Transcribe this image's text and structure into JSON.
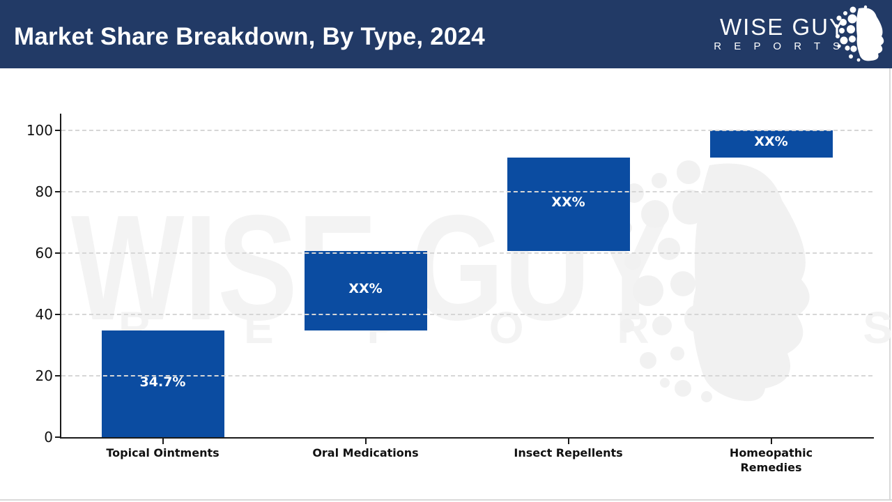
{
  "header": {
    "title": "Market Share Breakdown, By Type, 2024",
    "bg_color": "#223a66",
    "logo": {
      "line1": "WISE GUY",
      "line2": "R E P O R T S",
      "icon": "dotted-head-profile"
    }
  },
  "watermark": {
    "line1": "WISE GUY",
    "line2": "R E P O R T S",
    "icon": "dotted-head-profile",
    "color": "#f3f3f3"
  },
  "chart_data": {
    "type": "bar",
    "subtype": "waterfall-stacked-breakdown",
    "title": "Market Share Breakdown, By Type, 2024",
    "categories": [
      "Topical Ointments",
      "Oral Medications",
      "Insect Repellents",
      "Homeopathic\nRemedies"
    ],
    "segments": [
      {
        "category": "Topical Ointments",
        "start": 0,
        "end": 34.7,
        "label": "34.7%"
      },
      {
        "category": "Oral Medications",
        "start": 34.7,
        "end": 60.7,
        "label": "XX%"
      },
      {
        "category": "Insect Repellents",
        "start": 60.7,
        "end": 91.2,
        "label": "XX%"
      },
      {
        "category": "Homeopathic Remedies",
        "start": 91.2,
        "end": 100,
        "label": "XX%"
      }
    ],
    "xlabel": "",
    "ylabel": "",
    "ylim": [
      0,
      105
    ],
    "yticks": [
      0,
      20,
      40,
      60,
      80,
      100
    ],
    "grid": "horizontal-dashed-over-bars",
    "legend": "none",
    "bar_color": "#0b4ca1",
    "bar_label_color": "#ffffff",
    "axis_color": "#1a1a1a",
    "grid_color": "#d6d6d6"
  }
}
